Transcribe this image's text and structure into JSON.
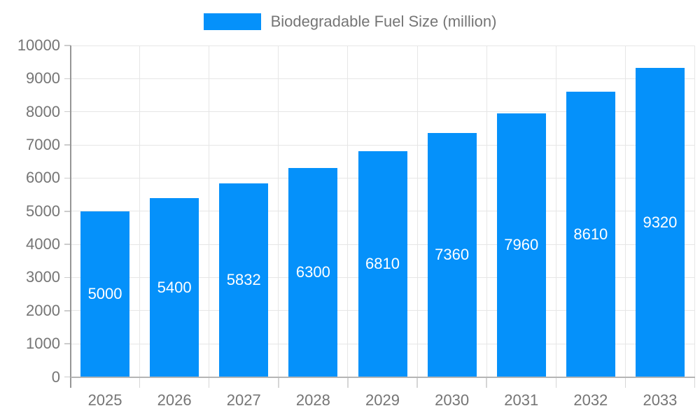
{
  "legend": {
    "label": "Biodegradable Fuel Size (million)"
  },
  "colors": {
    "bar": "#0591FA",
    "grid": "#e6e6e6",
    "y_axis_line": "#969696",
    "x_axis_line": "#b5b5b5",
    "y_tick": "#cccccc",
    "x_tick": "#d6d6d6",
    "axis_text": "#757575",
    "value_label_text": "#ffffff",
    "background": "#ffffff"
  },
  "chart_data": {
    "type": "bar",
    "title": "",
    "series_name": "Biodegradable Fuel Size (million)",
    "categories": [
      "2025",
      "2026",
      "2027",
      "2028",
      "2029",
      "2030",
      "2031",
      "2032",
      "2033"
    ],
    "values": [
      5000,
      5400,
      5832,
      6300,
      6810,
      7360,
      7960,
      8610,
      9320
    ],
    "xlabel": "",
    "ylabel": "",
    "ylim": [
      0,
      10000
    ],
    "y_tick_step": 1000,
    "y_tick_labels": [
      "0",
      "1000",
      "2000",
      "3000",
      "4000",
      "5000",
      "6000",
      "7000",
      "8000",
      "9000",
      "10000"
    ],
    "grid": true,
    "legend_position": "top-center",
    "value_labels_position": "inside-middle"
  }
}
